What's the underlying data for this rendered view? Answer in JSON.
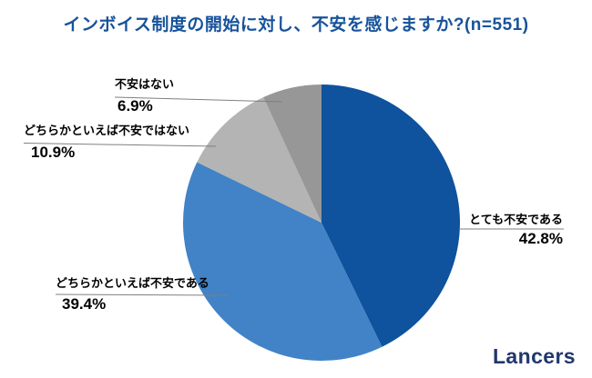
{
  "chart_data": {
    "type": "pie",
    "title": "インボイス制度の開始に対し、不安を感じますか?(n=551)",
    "n": 551,
    "labels": [
      "とても不安である",
      "どちらかといえば不安である",
      "どちらかといえば不安ではない",
      "不安はない"
    ],
    "values": [
      42.8,
      39.4,
      10.9,
      6.9
    ],
    "value_labels": [
      "42.8%",
      "39.4%",
      "10.9%",
      "6.9%"
    ],
    "colors": [
      "#0F529D",
      "#4183C6",
      "#B4B4B4",
      "#979797"
    ],
    "start_angle": "12-oclock",
    "direction": "clockwise",
    "legend": "none",
    "label_style": "external callouts with gray leader lines"
  },
  "logo": {
    "text": "Lancers",
    "color": "#21386E"
  },
  "styles": {
    "background": "#FFFFFF",
    "title_color": "#17539B",
    "label_color": "#000000",
    "leader_line_color": "#7F7F7F"
  }
}
